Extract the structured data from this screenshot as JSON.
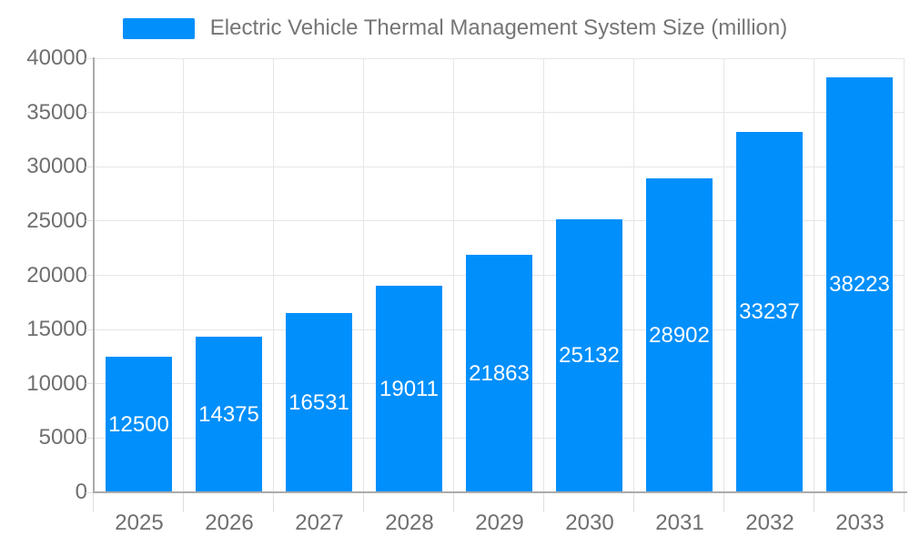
{
  "chart_data": {
    "type": "bar",
    "title": "Electric Vehicle Thermal Management System Size (million)",
    "categories": [
      "2025",
      "2026",
      "2027",
      "2028",
      "2029",
      "2030",
      "2031",
      "2032",
      "2033"
    ],
    "values": [
      12500,
      14375,
      16531,
      19011,
      21863,
      25132,
      28902,
      33237,
      38223
    ],
    "series": [
      {
        "name": "Electric Vehicle Thermal Management System Size (million)",
        "values": [
          12500,
          14375,
          16531,
          19011,
          21863,
          25132,
          28902,
          33237,
          38223
        ]
      }
    ],
    "xlabel": "",
    "ylabel": "",
    "ylim": [
      0,
      40000
    ],
    "ytick_step": 5000,
    "ytick_labels": [
      "0",
      "5000",
      "10000",
      "15000",
      "20000",
      "25000",
      "30000",
      "35000",
      "40000"
    ],
    "grid": true,
    "legend_position": "top",
    "colors": {
      "bar": "#008FFB",
      "value_label": "#ffffff",
      "axis_label": "#6f6f6f",
      "legend_label": "#757575",
      "grid": "#e6e6e6",
      "tick": "#dedede",
      "axis_line": "#ababab",
      "background": "#ffffff"
    }
  }
}
